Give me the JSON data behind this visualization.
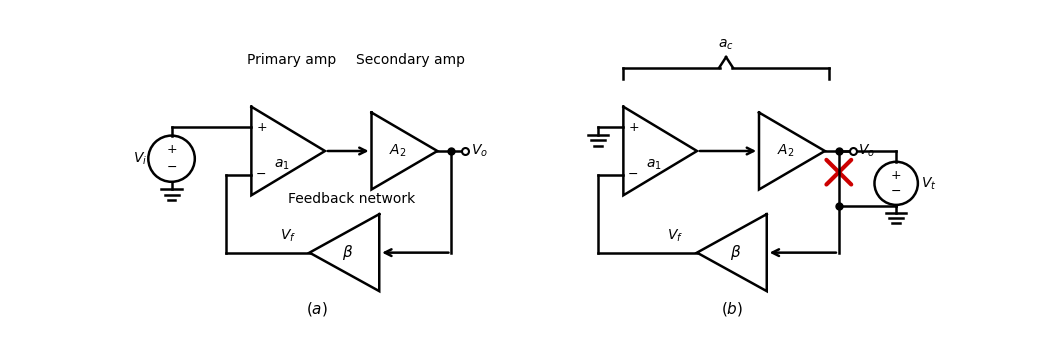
{
  "bg_color": "#ffffff",
  "line_color": "#000000",
  "red_color": "#cc0000",
  "fig_width": 10.5,
  "fig_height": 3.6,
  "lw": 1.8,
  "labels": {
    "primary_amp": "Primary amp",
    "secondary_amp": "Secondary amp",
    "feedback_network": "Feedback network",
    "a1": "$a_1$",
    "A2": "$A_2$",
    "beta": "$\\beta$",
    "Vi": "$V_i$",
    "Vo": "$V_o$",
    "Vf": "$V_f$",
    "fig_a": "$(a)$",
    "fig_b": "$(b)$",
    "ac": "$a_c$",
    "Vt": "$V_t$"
  }
}
